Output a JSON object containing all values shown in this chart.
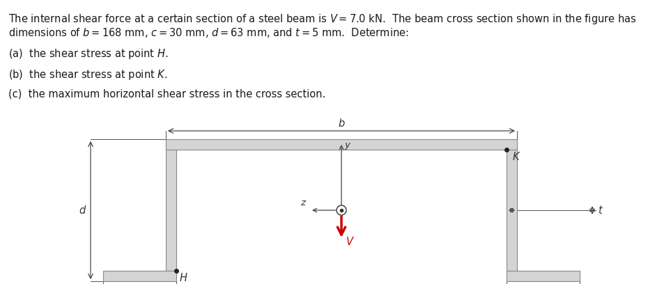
{
  "line1": "The internal shear force at a certain section of a steel beam is $V = 7.0$ kN.  The beam cross section shown in the figure has",
  "line2": "dimensions of $b = 168$ mm, $c = 30$ mm, $d = 63$ mm, and $t = 5$ mm.  Determine:",
  "item_a": "(a)  the shear stress at point $H$.",
  "item_b": "(b)  the shear stress at point $K$.",
  "item_c": "(c)  the maximum horizontal shear stress in the cross section.",
  "beam_fill": "#d4d4d4",
  "beam_edge": "#888888",
  "arrow_color": "#cc0000",
  "text_color": "#1a1a1a",
  "dim_color": "#333333",
  "font_size": 10.5
}
